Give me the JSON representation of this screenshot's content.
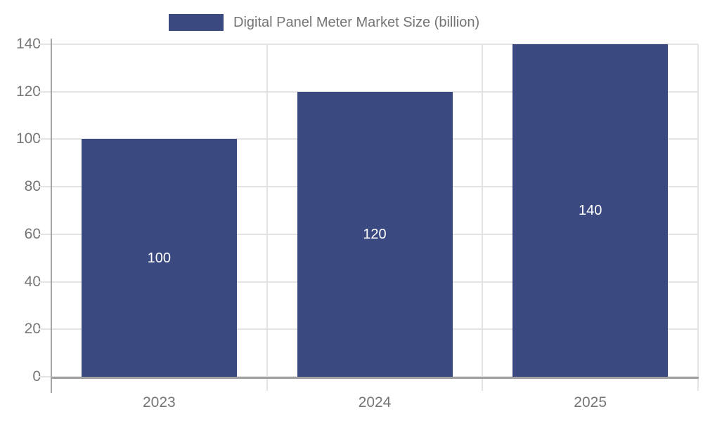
{
  "chart_data": {
    "type": "bar",
    "title": "Digital Panel Meter Market Size (billion)",
    "legend": {
      "label": "Digital Panel Meter Market Size (billion)",
      "position": "top"
    },
    "categories": [
      "2023",
      "2024",
      "2025"
    ],
    "series": [
      {
        "name": "Digital Panel Meter Market Size (billion)",
        "values": [
          100,
          120,
          140
        ]
      }
    ],
    "value_labels": [
      "100",
      "120",
      "140"
    ],
    "xlabel": "",
    "ylabel": "",
    "ylim": [
      0,
      140
    ],
    "yticks": [
      0,
      20,
      40,
      60,
      80,
      100,
      120,
      140
    ],
    "grid": true,
    "colors": {
      "bar": "#3A4A80",
      "grid_line": "#E4E4E4",
      "axis_line": "#A3A3A3",
      "tick_label": "#757575",
      "value_label": "#FFFFFF",
      "background": "#FFFFFF"
    }
  }
}
